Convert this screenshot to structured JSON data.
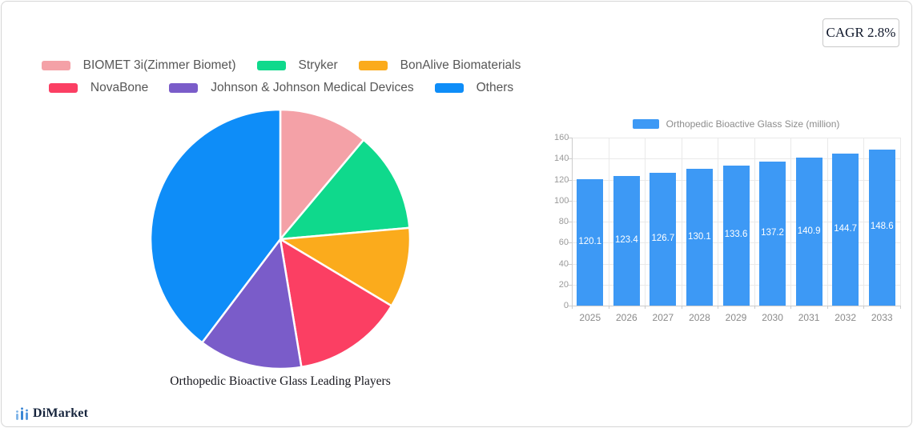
{
  "card": {
    "cagr_label": "CAGR 2.8%"
  },
  "brand": {
    "name": "DiMarket"
  },
  "chart_data": [
    {
      "type": "pie",
      "title": "Orthopedic Bioactive Glass Leading Players",
      "legend_position": "top-left",
      "labels": [
        "BIOMET 3i(Zimmer Biomet)",
        "Stryker",
        "BonAlive Biomaterials",
        "NovaBone",
        "Johnson & Johnson Medical Devices",
        "Others"
      ],
      "values": [
        11.1,
        12.5,
        10.0,
        13.8,
        12.9,
        39.7
      ],
      "unit": "percent-share",
      "colors": [
        "#f4a1a7",
        "#0fd98c",
        "#fbab1c",
        "#fb3f63",
        "#7a5cc9",
        "#0e8df8"
      ],
      "start_angle": "12-oclock",
      "direction": "clockwise"
    },
    {
      "type": "bar",
      "legend": "Orthopedic Bioactive Glass Size (million)",
      "categories": [
        "2025",
        "2026",
        "2027",
        "2028",
        "2029",
        "2030",
        "2031",
        "2032",
        "2033"
      ],
      "values": [
        120.1,
        123.4,
        126.7,
        130.1,
        133.6,
        137.2,
        140.9,
        144.7,
        148.6
      ],
      "ylim": [
        0,
        160
      ],
      "ytick_step": 20,
      "bar_color": "#3d99f5",
      "grid": true,
      "value_labels": "inside-white"
    }
  ]
}
